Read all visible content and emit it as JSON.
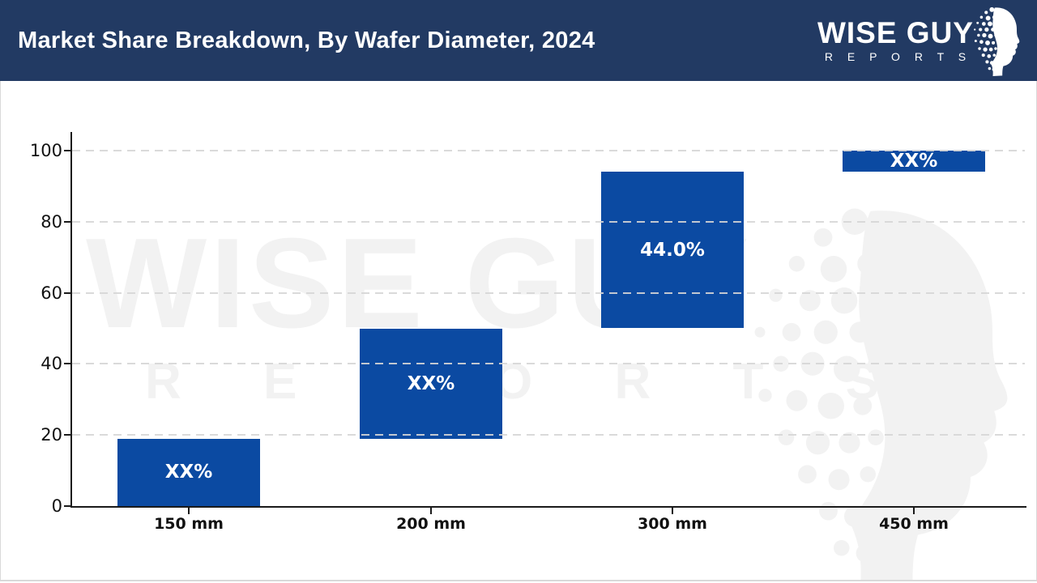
{
  "header": {
    "title": "Market Share Breakdown, By Wafer Diameter, 2024",
    "logo": {
      "line1": "WISE GUY",
      "line2": "R E P O R T S"
    }
  },
  "watermark": {
    "line1": "WISE GUY",
    "line2": "R E P O R T S"
  },
  "colors": {
    "header_bg": "#223a63",
    "bar_fill": "#0b4aa2",
    "gridline": "#d6d6d6",
    "watermark": "#f2f2f2",
    "axis": "#1a1a1a",
    "bar_label_text": "#ffffff"
  },
  "chart_data": {
    "type": "bar",
    "subtype": "waterfall",
    "title": "Market Share Breakdown, By Wafer Diameter, 2024",
    "xlabel": "",
    "ylabel": "",
    "categories": [
      "150 mm",
      "200 mm",
      "300 mm",
      "450 mm"
    ],
    "bars": [
      {
        "category": "150 mm",
        "from": 0,
        "to": 19,
        "label": "XX%"
      },
      {
        "category": "200 mm",
        "from": 19,
        "to": 50,
        "label": "XX%"
      },
      {
        "category": "300 mm",
        "from": 50,
        "to": 94,
        "label": "44.0%"
      },
      {
        "category": "450 mm",
        "from": 94,
        "to": 100,
        "label": "XX%"
      }
    ],
    "yticks": [
      0,
      20,
      40,
      60,
      80,
      100
    ],
    "ylim": [
      0,
      105
    ],
    "grid": "horizontal-dashed",
    "legend": "none"
  }
}
